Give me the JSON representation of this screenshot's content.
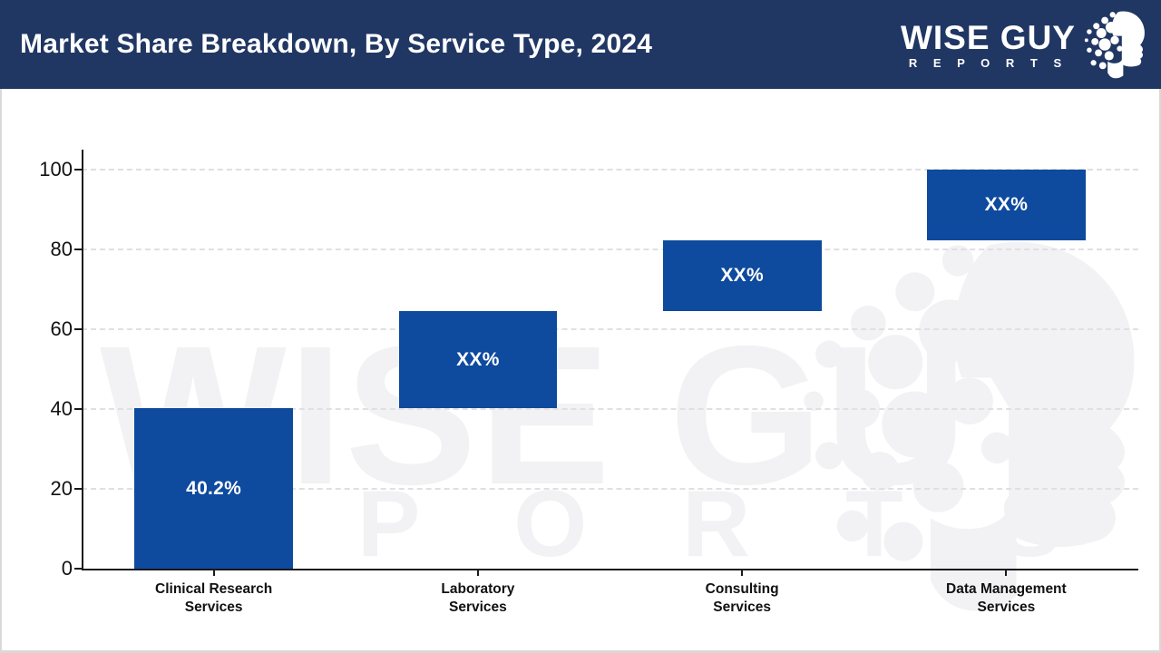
{
  "header": {
    "title": "Market Share Breakdown, By Service Type, 2024",
    "bg_color": "#203764",
    "logo": {
      "wordmark": "WISE GUY",
      "subtext": "R E P O R T S",
      "icon": "face-profile-dots-icon"
    }
  },
  "watermark": {
    "wordmark": "WISE GUY",
    "subtext": "P O R T S",
    "icon": "face-profile-dots-icon",
    "color": "#f2f2f4"
  },
  "colors": {
    "bar": "#0e4a9e",
    "bar_label": "#ffffff",
    "axis": "#1a1a1a",
    "gridline": "#e0e0e0",
    "header_bg": "#203764",
    "page_border": "#d9d9d9"
  },
  "chart_data": {
    "type": "bar",
    "subtype": "waterfall",
    "title": "Market Share Breakdown, By Service Type, 2024",
    "xlabel": "",
    "ylabel": "",
    "ylim": [
      0,
      100
    ],
    "yticks": [
      0,
      20,
      40,
      60,
      80,
      100
    ],
    "grid": "horizontal-dashed",
    "legend": "none",
    "categories": [
      "Clinical Research Services",
      "Laboratory Services",
      "Consulting Services",
      "Data Management Services"
    ],
    "segments": [
      {
        "category": "Clinical Research Services",
        "label_lines": [
          "Clinical Research",
          "Services"
        ],
        "start": 0,
        "end": 40.2,
        "value_label": "40.2%"
      },
      {
        "category": "Laboratory Services",
        "label_lines": [
          "Laboratory",
          "Services"
        ],
        "start": 40.2,
        "end": 64.5,
        "value_label": "XX%"
      },
      {
        "category": "Consulting Services",
        "label_lines": [
          "Consulting",
          "Services"
        ],
        "start": 64.5,
        "end": 82.3,
        "value_label": "XX%"
      },
      {
        "category": "Data Management Services",
        "label_lines": [
          "Data Management",
          "Services"
        ],
        "start": 82.3,
        "end": 100,
        "value_label": "XX%"
      }
    ]
  }
}
